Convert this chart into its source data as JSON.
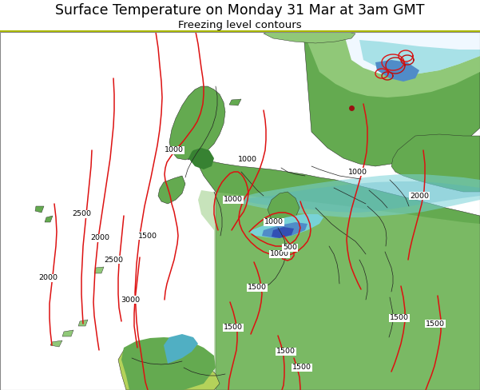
{
  "title": "Surface Temperature on Monday 31 Mar at 3am GMT",
  "subtitle": "Freezing level contours",
  "title_fontsize": 12.5,
  "subtitle_fontsize": 9.5,
  "fig_width": 6.01,
  "fig_height": 4.88,
  "dpi": 100,
  "ocean_color": [
    200,
    212,
    232
  ],
  "header_bg": "#ffffff",
  "contour_color": "#dd1111",
  "contour_lw": 1.1,
  "label_fontsize": 6.8
}
